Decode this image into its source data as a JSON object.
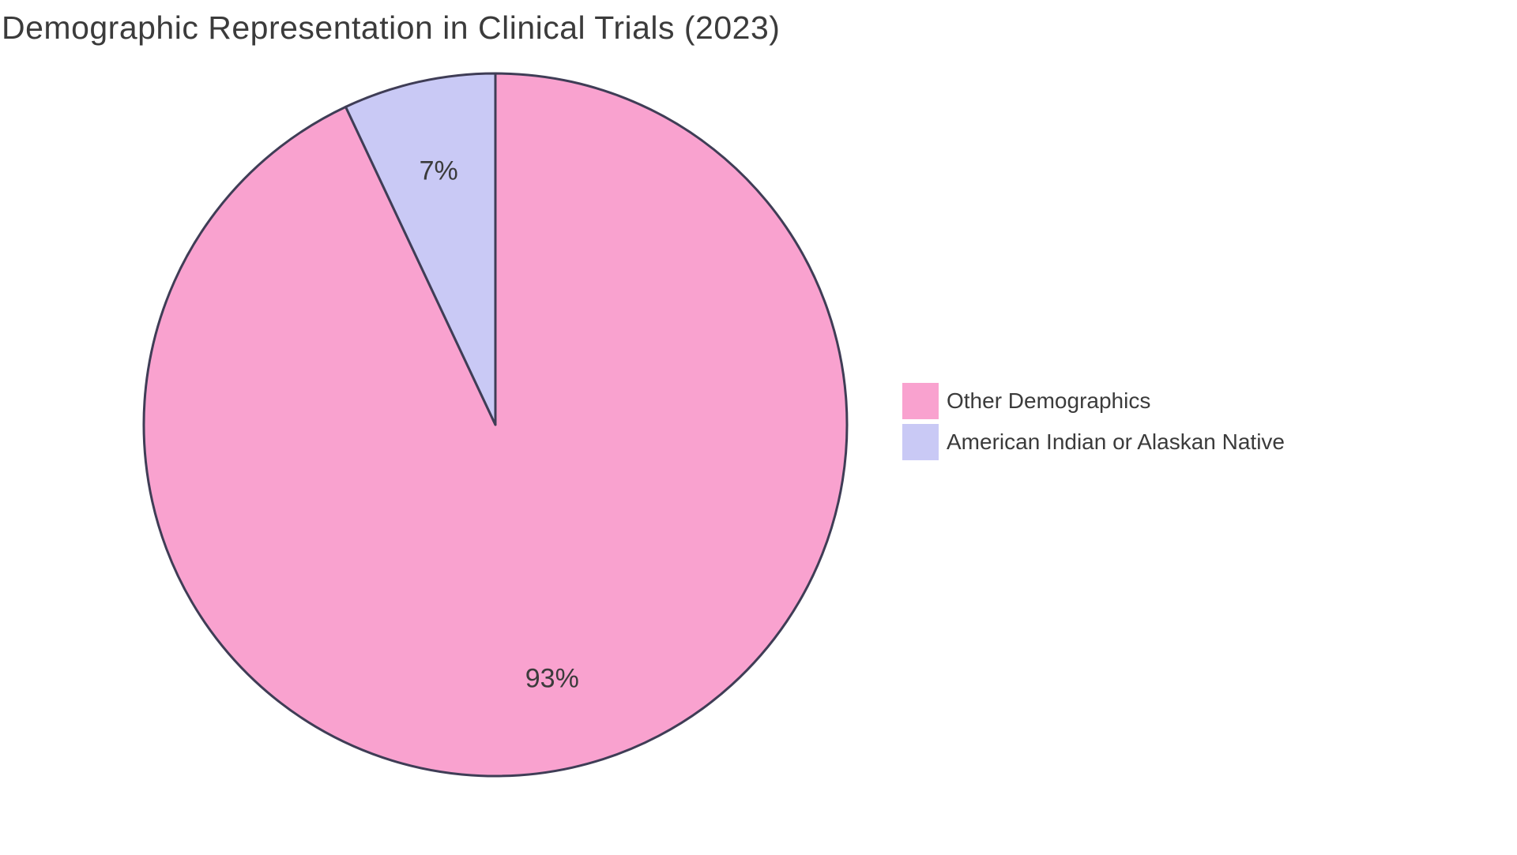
{
  "header": {
    "title": "Demographic Representation in Clinical Trials (2023)"
  },
  "chart_data": {
    "type": "pie",
    "title": "Demographic Representation in Clinical Trials (2023)",
    "labels": [
      "Other Demographics",
      "American Indian or Alaskan Native"
    ],
    "values": [
      93,
      7
    ],
    "value_labels": [
      "93%",
      "7%"
    ],
    "colors": [
      "#F9A2CF",
      "#C9C9F5"
    ],
    "border_color": "#3F3D56",
    "border_width": 3,
    "start_angle_deg": 0,
    "direction": "clockwise",
    "label_position": "inside",
    "label_color": "#3b3b3b",
    "legend_position": "right",
    "background": "#ffffff"
  },
  "legend": {
    "items": [
      {
        "label": "Other Demographics",
        "color": "#F9A2CF"
      },
      {
        "label": "American Indian or Alaskan Native",
        "color": "#C9C9F5"
      }
    ]
  }
}
